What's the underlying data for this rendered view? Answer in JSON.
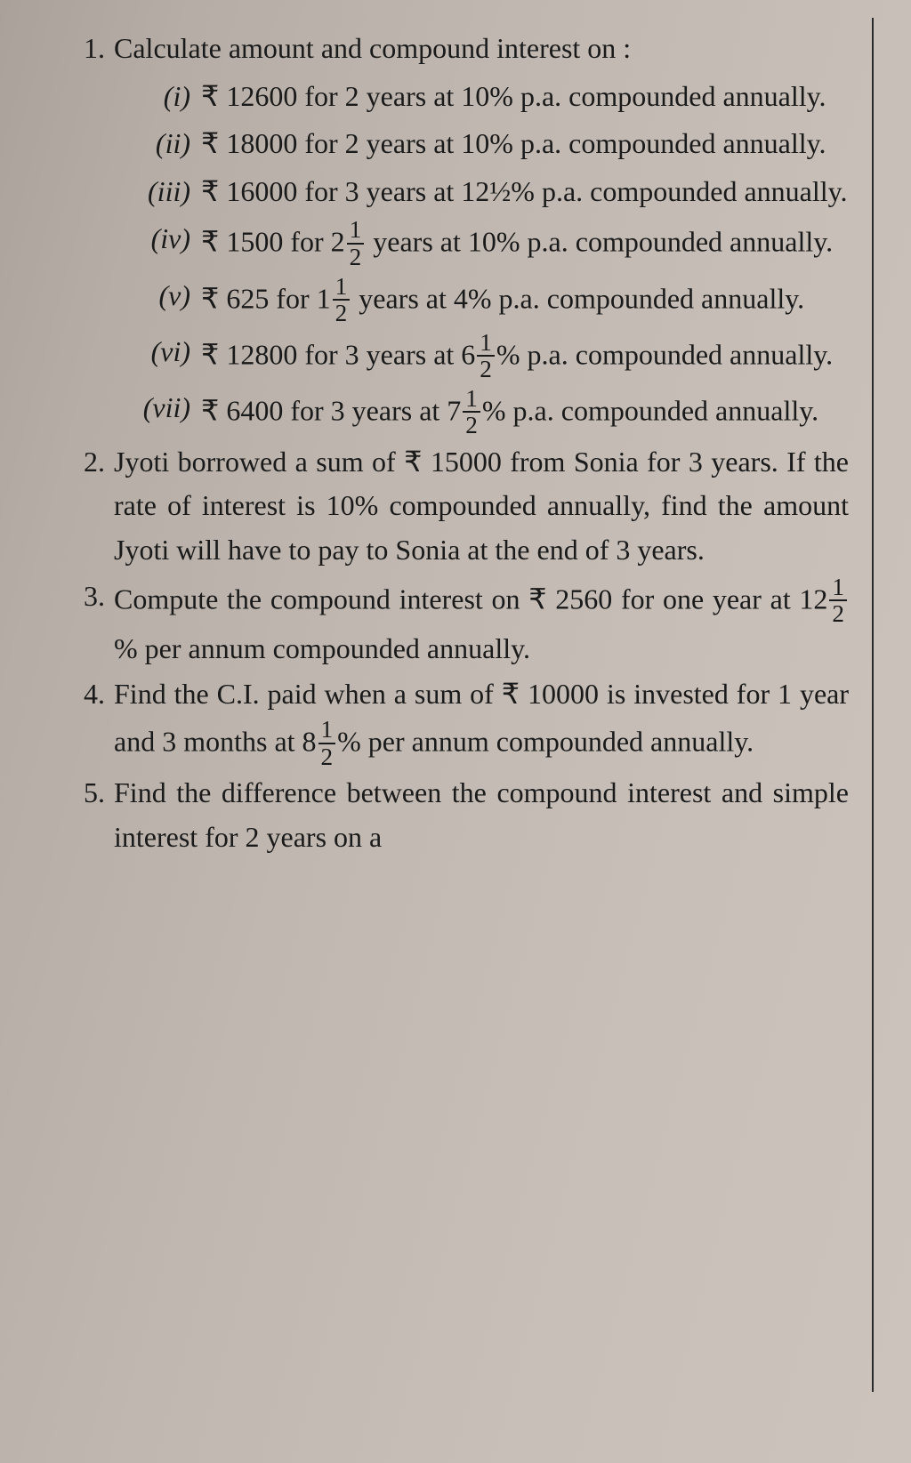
{
  "q1": {
    "num": "1.",
    "intro": "Calculate amount and compound interest on :",
    "parts": [
      {
        "label": "(i)",
        "principal": "₹ 12600",
        "time": "2",
        "rate": "10%",
        "tail": "p.a. compounded annually.",
        "frac": null
      },
      {
        "label": "(ii)",
        "principal": "₹ 18000",
        "time": "2",
        "rate": "10%",
        "tail": "p.a. compounded annually.",
        "frac": null
      },
      {
        "label": "(iii)",
        "principal": "₹ 16000",
        "time": "3",
        "rate": "12½%",
        "tail": "p.a. compounded annually.",
        "frac": null
      },
      {
        "label": "(iv)",
        "principal": "₹ 1500",
        "time_whole": "2",
        "rate": "10%",
        "tail": "p.a. compounded annually.",
        "frac": {
          "n": "1",
          "d": "2"
        }
      },
      {
        "label": "(v)",
        "principal": "₹ 625",
        "time_whole": "1",
        "rate": "4%",
        "tail": "p.a. compounded annually.",
        "frac": {
          "n": "1",
          "d": "2"
        }
      },
      {
        "label": "(vi)",
        "principal": "₹ 12800",
        "time": "3",
        "rate_whole": "6",
        "rate_frac": {
          "n": "1",
          "d": "2"
        },
        "tail": "p.a. compounded annually."
      },
      {
        "label": "(vii)",
        "principal": "₹ 6400",
        "time": "3",
        "rate_whole": "7",
        "rate_frac": {
          "n": "1",
          "d": "2"
        },
        "tail": "p.a. compounded annually."
      }
    ]
  },
  "q2": {
    "num": "2.",
    "text": "Jyoti borrowed a sum of ₹ 15000 from Sonia for 3 years. If the rate of interest is 10% compounded annually, find the amount Jyoti will have to pay to Sonia at the end of 3 years."
  },
  "q3": {
    "num": "3.",
    "before": "Compute the compound interest on ₹ 2560 for one year at ",
    "rate_whole": "12",
    "rate_frac": {
      "n": "1",
      "d": "2"
    },
    "after": "% per annum compounded annually."
  },
  "q4": {
    "num": "4.",
    "before": "Find the C.I. paid when a sum of ₹ 10000 is invested for 1 year and 3 months at ",
    "rate_whole": "8",
    "rate_frac": {
      "n": "1",
      "d": "2"
    },
    "after": "% per annum compounded annually."
  },
  "q5": {
    "num": "5.",
    "text": "Find the difference between the compound interest and simple interest for 2 years on a"
  }
}
